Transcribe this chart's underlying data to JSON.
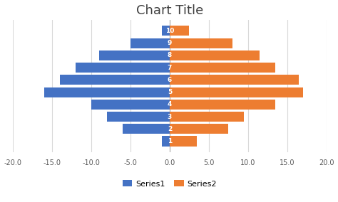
{
  "title": "Chart Title",
  "categories": [
    "1",
    "2",
    "3",
    "4",
    "5",
    "6",
    "7",
    "8",
    "9",
    "10"
  ],
  "series1_values": [
    -1,
    -6,
    -8,
    -10,
    -16,
    -14,
    -12,
    -9,
    -5,
    -1
  ],
  "series2_values": [
    3.5,
    7.5,
    9.5,
    13.5,
    17,
    16.5,
    13.5,
    11.5,
    8,
    2.5
  ],
  "series1_label": "Series1",
  "series2_label": "Series2",
  "series1_color": "#4472C4",
  "series2_color": "#ED7D31",
  "xlim": [
    -20,
    20
  ],
  "xticks": [
    -20,
    -15,
    -10,
    -5,
    0,
    5,
    10,
    15,
    20
  ],
  "xtick_labels": [
    "-20.0",
    "-15.0",
    "-10.0",
    "-5.0",
    "0.0",
    "5.0",
    "10.0",
    "15.0",
    "20.0"
  ],
  "background_color": "#FFFFFF",
  "title_fontsize": 13,
  "grid_color": "#D9D9D9",
  "label_color": "#595959",
  "bar_height": 0.82
}
